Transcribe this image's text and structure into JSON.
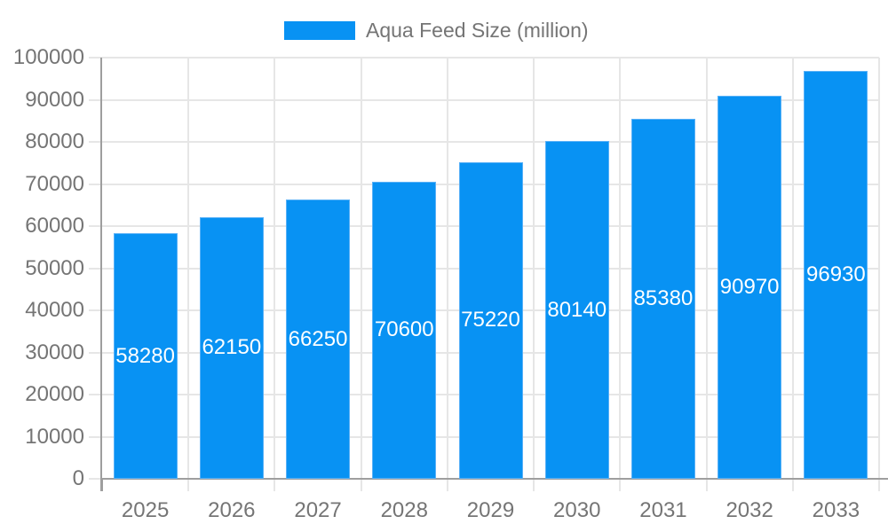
{
  "chart_data": {
    "type": "bar",
    "title": "",
    "xlabel": "",
    "ylabel": "",
    "categories": [
      "2025",
      "2026",
      "2027",
      "2028",
      "2029",
      "2030",
      "2031",
      "2032",
      "2033"
    ],
    "series": [
      {
        "name": "Aqua Feed Size (million)",
        "values": [
          58280,
          62150,
          66250,
          70600,
          75220,
          80140,
          85380,
          90970,
          96930
        ]
      }
    ],
    "ylim": [
      0,
      100000
    ],
    "yticks": [
      0,
      10000,
      20000,
      30000,
      40000,
      50000,
      60000,
      70000,
      80000,
      90000,
      100000
    ],
    "grid": true,
    "legend_position": "top-center",
    "value_label_position": "inside-center",
    "colors": {
      "bar_fill": "#0892f3",
      "bar_stroke": "#5ab1f7",
      "grid": "#e6e6e6",
      "axis": "#9e9e9e",
      "tick_text": "#757575",
      "legend_text": "#757575",
      "value_text": "#ffffff",
      "background": "#ffffff"
    }
  }
}
